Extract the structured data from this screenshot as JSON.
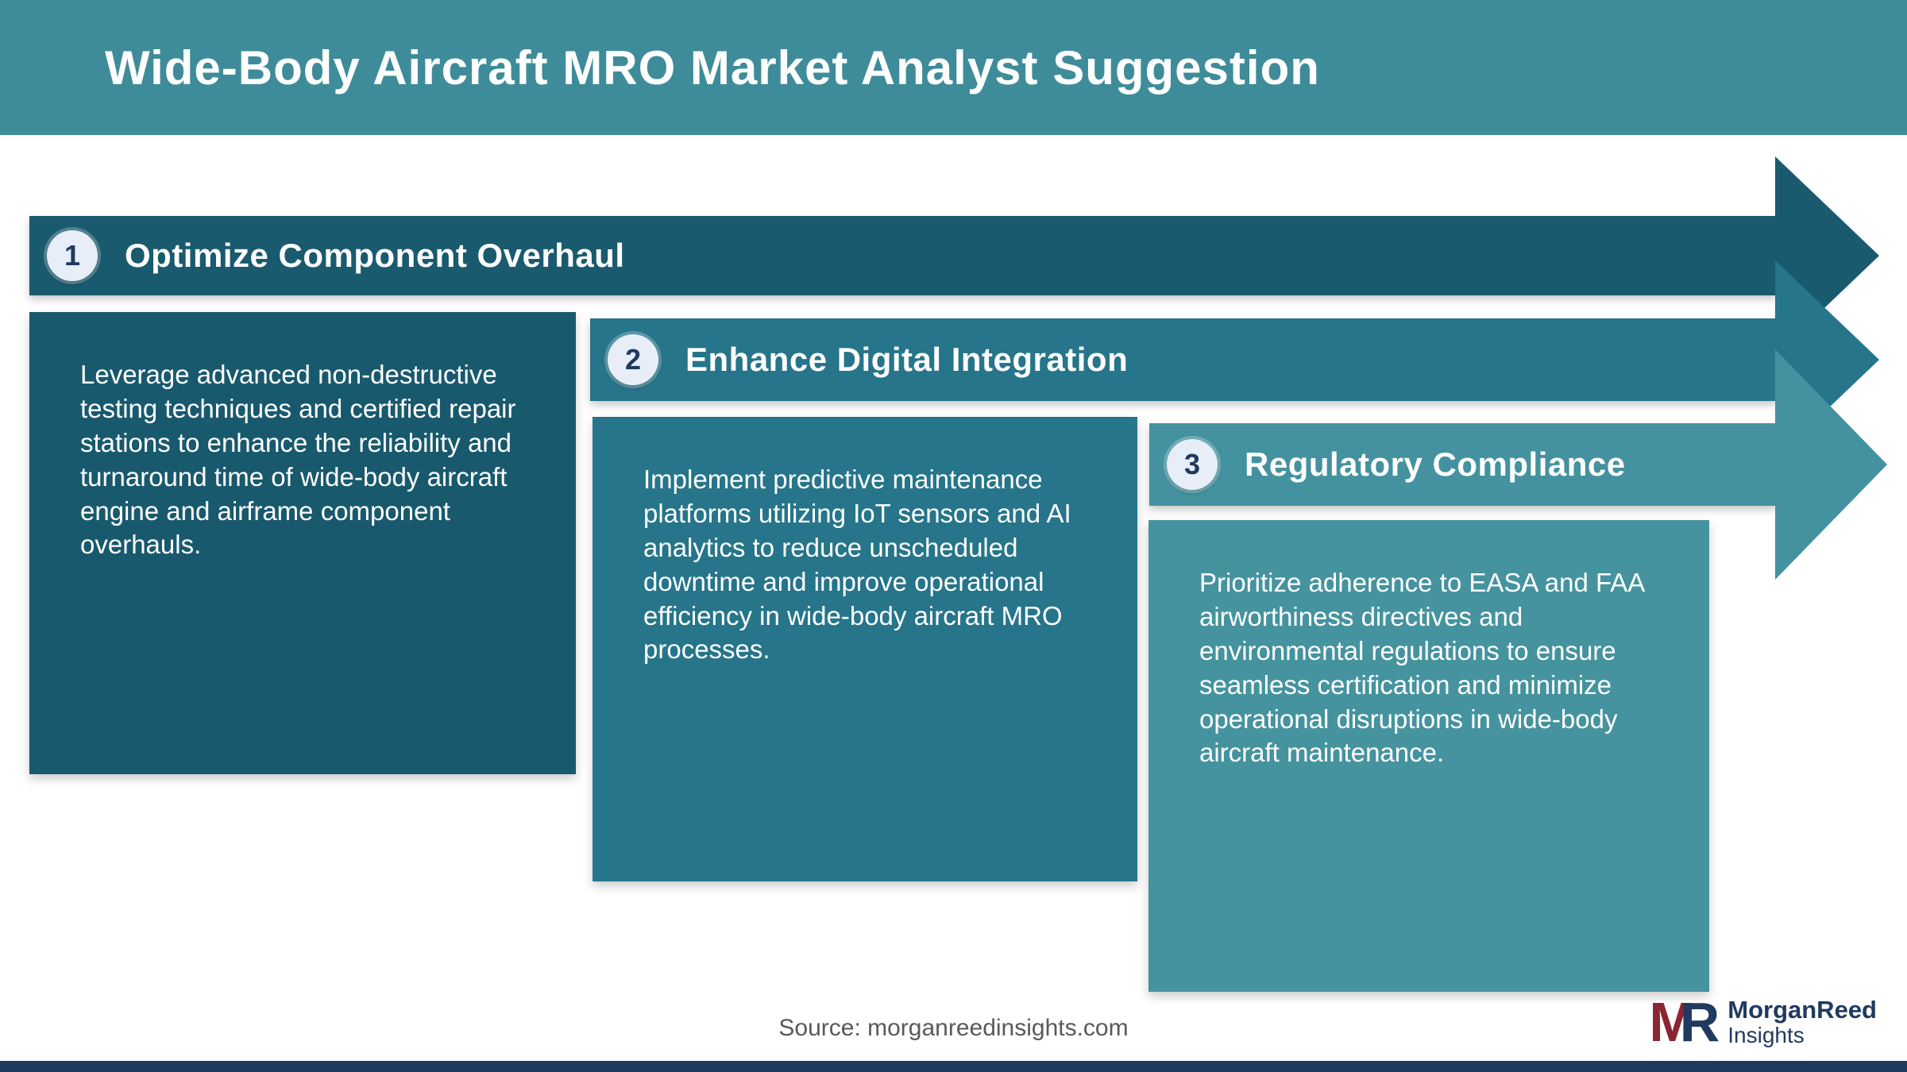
{
  "header": {
    "title": "Wide-Body Aircraft MRO Market Analyst Suggestion",
    "bg_color": "#3e8c99"
  },
  "steps": [
    {
      "number": "1",
      "title": "Optimize Component Overhaul",
      "body": "Leverage advanced non-destructive testing techniques and certified repair stations to enhance the reliability and turnaround time of wide-body aircraft engine and airframe component overhauls.",
      "color": "#1a5a6f"
    },
    {
      "number": "2",
      "title": "Enhance Digital Integration",
      "body": "Implement predictive maintenance platforms utilizing IoT sensors and AI analytics to reduce unscheduled downtime and improve operational efficiency in wide-body aircraft MRO processes.",
      "color": "#26758a"
    },
    {
      "number": "3",
      "title": "Regulatory Compliance",
      "body": "Prioritize adherence to EASA and FAA airworthiness directives and environmental regulations to ensure seamless certification and minimize operational disruptions in wide-body aircraft maintenance.",
      "color": "#45939f"
    }
  ],
  "footer": {
    "source": "Source: morganreedinsights.com",
    "logo": {
      "monogram_m": "M",
      "monogram_r": "R",
      "name": "MorganReed",
      "tagline": "Insights",
      "maroon": "#8b2433",
      "navy": "#203a5f"
    }
  }
}
